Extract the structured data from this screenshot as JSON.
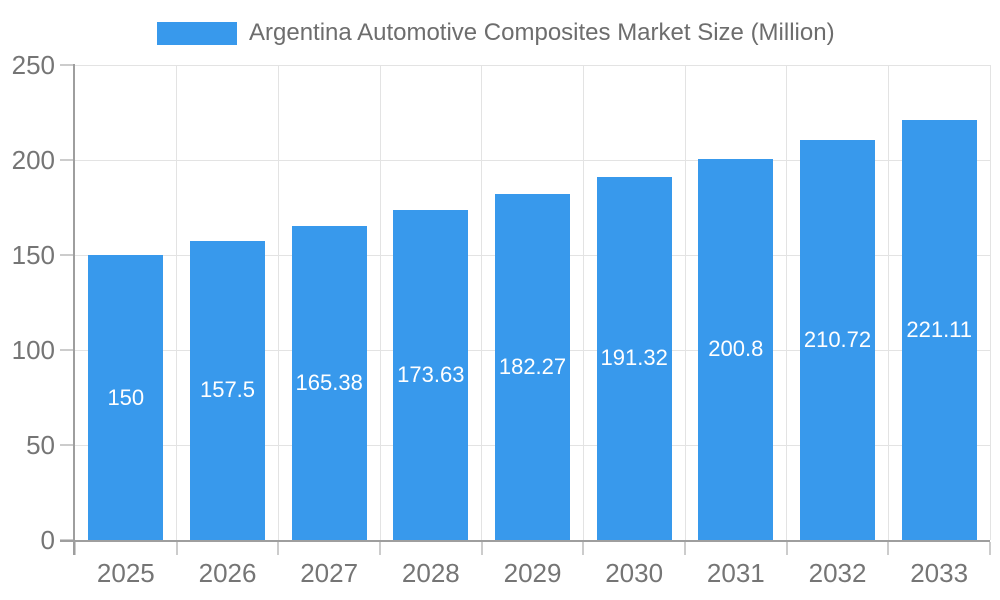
{
  "chart_data": {
    "type": "bar",
    "title": "Argentina Automotive Composites Market Size (Million)",
    "categories": [
      "2025",
      "2026",
      "2027",
      "2028",
      "2029",
      "2030",
      "2031",
      "2032",
      "2033"
    ],
    "values": [
      150,
      157.5,
      165.38,
      173.63,
      182.27,
      191.32,
      200.8,
      210.72,
      221.11
    ],
    "value_labels": [
      "150",
      "157.5",
      "165.38",
      "173.63",
      "182.27",
      "191.32",
      "200.8",
      "210.72",
      "221.11"
    ],
    "xlabel": "",
    "ylabel": "",
    "ylim": [
      0,
      250
    ],
    "yticks": [
      0,
      50,
      100,
      150,
      200,
      250
    ],
    "grid": true,
    "legend_position": "top",
    "colors": {
      "bar": "#3899ec",
      "bar_label": "#ffffff",
      "axis_text": "#757575",
      "title_text": "#6d6d6d",
      "grid_line": "#e3e3e3",
      "axis_line": "#9e9e9e",
      "tick": "#cccccc",
      "background": "#ffffff"
    }
  }
}
